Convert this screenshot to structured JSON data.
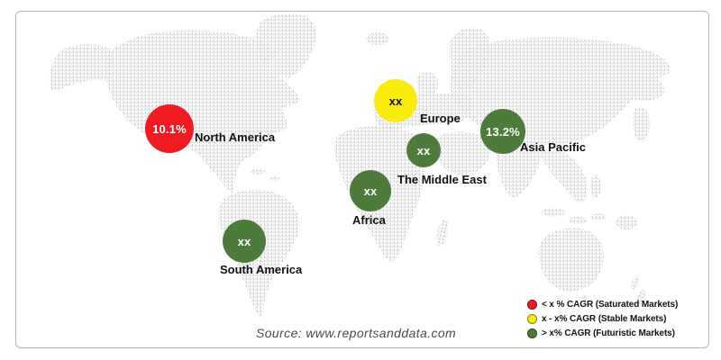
{
  "chart_data": {
    "type": "bubble-map",
    "description": "World map infographic showing CAGR by region",
    "regions": [
      {
        "name": "North America",
        "value_label": "10.1%",
        "cagr_pct": 10.1,
        "market_type": "Saturated Markets",
        "color": "#ee1b23",
        "value_color": "#ffffff"
      },
      {
        "name": "Europe",
        "value_label": "xx",
        "cagr_pct": null,
        "market_type": "Stable Markets",
        "color": "#f9ec0c",
        "value_color": "#111111"
      },
      {
        "name": "Asia Pacific",
        "value_label": "13.2%",
        "cagr_pct": 13.2,
        "market_type": "Futuristic Markets",
        "color": "#4e7b3c",
        "value_color": "#ffffff"
      },
      {
        "name": "The Middle East",
        "value_label": "xx",
        "cagr_pct": null,
        "market_type": "Futuristic Markets",
        "color": "#4e7b3c",
        "value_color": "#ffffff"
      },
      {
        "name": "Africa",
        "value_label": "xx",
        "cagr_pct": null,
        "market_type": "Futuristic Markets",
        "color": "#4e7b3c",
        "value_color": "#ffffff"
      },
      {
        "name": "South America",
        "value_label": "xx",
        "cagr_pct": null,
        "market_type": "Futuristic Markets",
        "color": "#4e7b3c",
        "value_color": "#ffffff"
      }
    ],
    "legend": [
      {
        "label": "< x % CAGR (Saturated Markets)",
        "color": "#ee1b23"
      },
      {
        "label": "x - x% CAGR (Stable Markets)",
        "color": "#f9ec0c"
      },
      {
        "label": "> x% CAGR (Futuristic Markets)",
        "color": "#4e7b3c"
      }
    ],
    "legend_position": "bottom-right",
    "source": "Source: www.reportsanddata.com",
    "map_dot_color": "#c8c8c8"
  }
}
